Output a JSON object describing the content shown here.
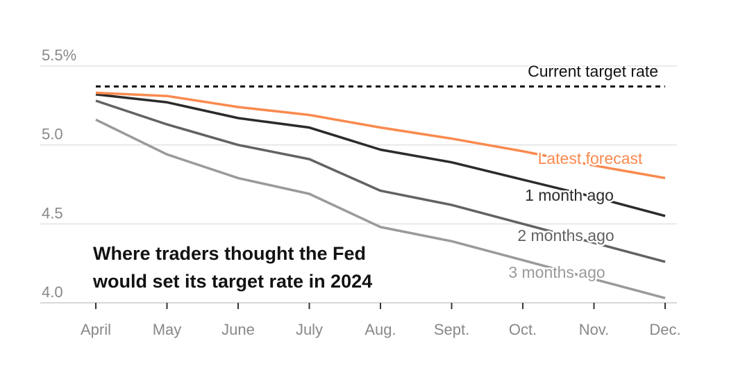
{
  "chart_data": {
    "type": "line",
    "title": "Where traders thought the Fed would set its target rate in 2024",
    "title_lines": [
      "Where traders thought the Fed",
      "would set its target rate in 2024"
    ],
    "categories": [
      "April",
      "May",
      "June",
      "July",
      "Aug.",
      "Sept.",
      "Oct.",
      "Nov.",
      "Dec."
    ],
    "ylim": [
      4.0,
      5.5
    ],
    "yticks": [
      {
        "value": 5.5,
        "label": "5.5%"
      },
      {
        "value": 5.0,
        "label": "5.0"
      },
      {
        "value": 4.5,
        "label": "4.5"
      },
      {
        "value": 4.0,
        "label": "4.0"
      }
    ],
    "grid": true,
    "reference_line": {
      "name": "Current target rate",
      "value": 5.37,
      "style": "dashed",
      "color": "#121212"
    },
    "series": [
      {
        "name": "3 months ago",
        "color": "#9a9a9a",
        "values": [
          5.16,
          4.94,
          4.79,
          4.69,
          4.48,
          4.39,
          4.27,
          4.15,
          4.03
        ]
      },
      {
        "name": "2 months ago",
        "color": "#626262",
        "values": [
          5.28,
          5.13,
          5.0,
          4.91,
          4.71,
          4.62,
          4.5,
          4.38,
          4.26
        ]
      },
      {
        "name": "1 month ago",
        "color": "#2b2b2b",
        "values": [
          5.32,
          5.27,
          5.17,
          5.11,
          4.97,
          4.89,
          4.78,
          4.67,
          4.55
        ]
      },
      {
        "name": "Latest forecast",
        "color": "#f98a4f",
        "values": [
          5.33,
          5.31,
          5.24,
          5.19,
          5.11,
          5.04,
          4.96,
          4.87,
          4.79
        ]
      }
    ]
  }
}
